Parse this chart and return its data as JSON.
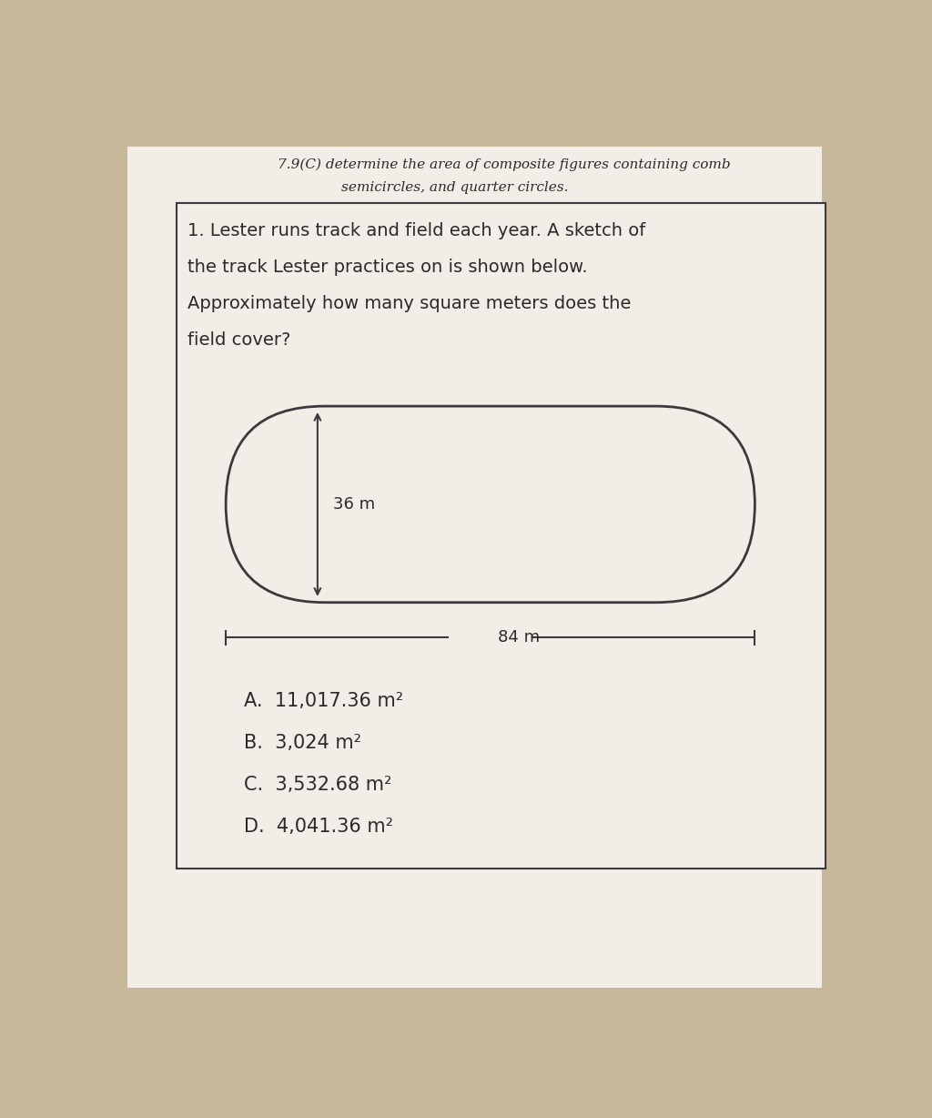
{
  "header_text": "7.9(C) determine the area of composite figures containing comb",
  "subheader_text": "semicircles, and quarter circles.",
  "question_line1": "1. Lester runs track and field each year. A sketch of",
  "question_line2": "the track Lester practices on is shown below.",
  "question_line3": "Approximately how many square meters does the",
  "question_line4": "field cover?",
  "width_label": "84 m",
  "height_label": "36 m",
  "choices": [
    "A.  11,017.36 m²",
    "B.  3,024 m²",
    "C.  3,532.68 m²",
    "D.  4,041.36 m²"
  ],
  "bg_color": "#c8b89a",
  "paper_color": "#f2ede6",
  "text_color": "#2a2a2a",
  "shape_color": "#3a3a3a",
  "font_size_header": 11,
  "font_size_question": 14,
  "font_size_choices": 15,
  "font_size_label": 13
}
